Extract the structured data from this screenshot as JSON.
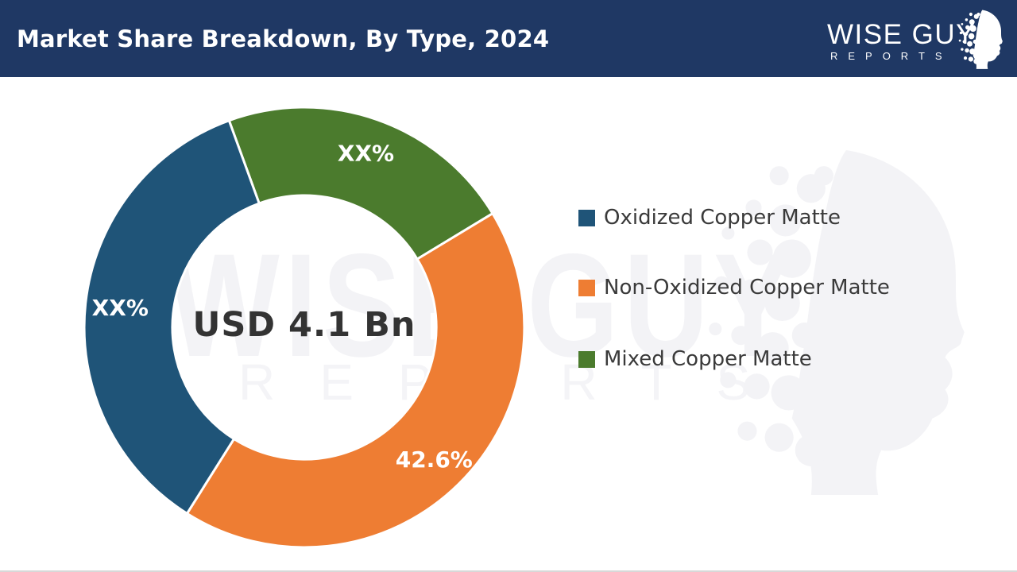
{
  "header": {
    "title": "Market Share Breakdown, By Type, 2024",
    "logo": {
      "line1": "WISE GUY",
      "line2": "REPORTS"
    }
  },
  "colors": {
    "header_bg": "#1f3864",
    "blue": "#1f5478",
    "orange": "#ee7d33",
    "green": "#4b7b2d",
    "legend_text": "#3a3a3a",
    "center_label_text": "#333333",
    "watermark": "#f3f3f6"
  },
  "chart_data": {
    "type": "pie",
    "subtype": "donut",
    "title": "Market Share Breakdown, By Type, 2024",
    "center_label": "USD 4.1 Bn",
    "start_angle_deg": 110,
    "direction": "clockwise",
    "inner_radius_ratio": 0.6,
    "legend_position": "right",
    "segments": [
      {
        "name": "Mixed Copper Matte",
        "value": 21.9,
        "display_label": "XX%",
        "color": "#4b7b2d",
        "label_color": "#ffffff"
      },
      {
        "name": "Non-Oxidized Copper Matte",
        "value": 42.6,
        "display_label": "42.6%",
        "color": "#ee7d33",
        "label_color": "#ffffff"
      },
      {
        "name": "Oxidized Copper Matte",
        "value": 35.5,
        "display_label": "XX%",
        "color": "#1f5478",
        "label_color": "#ffffff"
      }
    ]
  },
  "legend": {
    "items": [
      {
        "label": "Oxidized Copper Matte",
        "color": "#1f5478"
      },
      {
        "label": "Non-Oxidized Copper Matte",
        "color": "#ee7d33"
      },
      {
        "label": "Mixed Copper Matte",
        "color": "#4b7b2d"
      }
    ]
  },
  "watermark": {
    "line1": "WISE GUY",
    "line2": "REPORTS"
  }
}
